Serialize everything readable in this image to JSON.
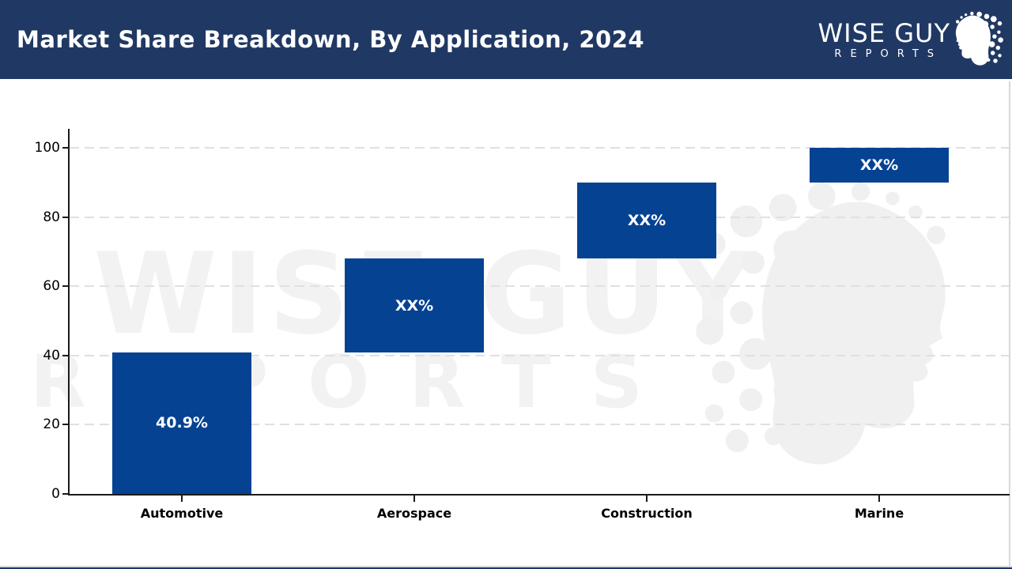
{
  "header": {
    "title": "Market Share Breakdown, By Application, 2024",
    "logo": {
      "line1": "WISE GUY",
      "line2": "REPORTS"
    }
  },
  "watermark": {
    "line1": "WISE GUY",
    "line2": "REPORTS"
  },
  "colors": {
    "header_bg": "#203864",
    "bar": "#064292",
    "bar_label_text": "#ffffff",
    "gridline": "#e0e0e0",
    "watermark": "#f2f2f2",
    "axis": "#1a1a1a"
  },
  "chart_data": {
    "type": "bar",
    "subtype": "waterfall",
    "title": "Market Share Breakdown, By Application, 2024",
    "categories": [
      "Automotive",
      "Aerospace",
      "Construction",
      "Marine"
    ],
    "segments": [
      {
        "category": "Automotive",
        "start": 0,
        "end": 40.9,
        "label": "40.9%"
      },
      {
        "category": "Aerospace",
        "start": 40.9,
        "end": 68,
        "label": "XX%"
      },
      {
        "category": "Construction",
        "start": 68,
        "end": 90,
        "label": "XX%"
      },
      {
        "category": "Marine",
        "start": 90,
        "end": 100,
        "label": "XX%"
      }
    ],
    "yticks": [
      0,
      20,
      40,
      60,
      80,
      100
    ],
    "ylim": [
      0,
      105
    ],
    "xlabel": "",
    "ylabel": "",
    "grid": "horizontal-dashed",
    "legend": "none"
  }
}
